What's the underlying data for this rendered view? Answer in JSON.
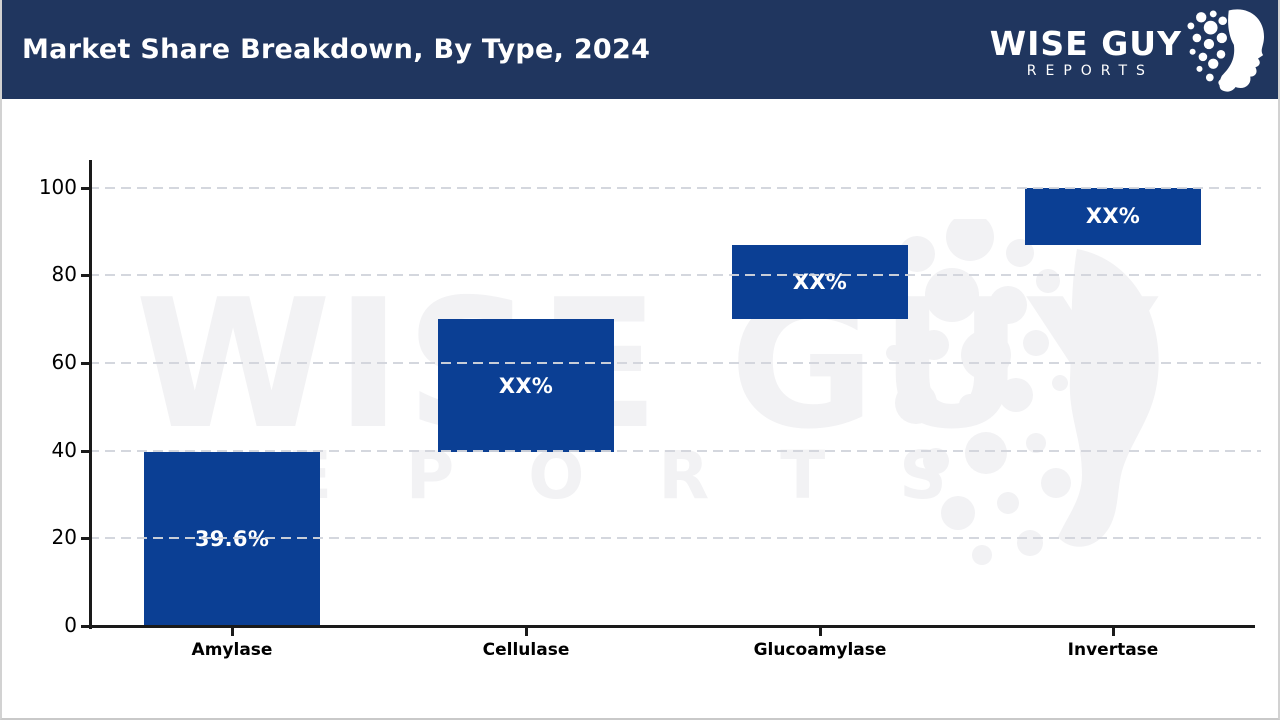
{
  "header": {
    "title": "Market Share Breakdown, By Type, 2024",
    "logo": {
      "line1": "WISE GUY",
      "line2": "REPORTS",
      "icon": "face-profile-dots-icon"
    }
  },
  "watermark": {
    "line1": "WISE GUY",
    "line2": "REPORTS",
    "icon": "face-profile-dots-watermark"
  },
  "chart_data": {
    "type": "bar",
    "subtype": "waterfall-stacked-market-share",
    "title": "Market Share Breakdown, By Type, 2024",
    "categories": [
      "Amylase",
      "Cellulase",
      "Glucoamylase",
      "Invertase"
    ],
    "segments": [
      {
        "category": "Amylase",
        "start": 0,
        "end": 39.6,
        "label": "39.6%"
      },
      {
        "category": "Cellulase",
        "start": 39.6,
        "end": 70,
        "label": "XX%"
      },
      {
        "category": "Glucoamylase",
        "start": 70,
        "end": 87,
        "label": "XX%"
      },
      {
        "category": "Invertase",
        "start": 87,
        "end": 100,
        "label": "XX%"
      }
    ],
    "xlabel": "",
    "ylabel": "",
    "yticks": [
      0,
      20,
      40,
      60,
      80,
      100
    ],
    "ylim": [
      0,
      105
    ],
    "grid": "horizontal-dashed",
    "legend": "none",
    "bar_color": "#0b3f94",
    "bar_label_color": "#ffffff"
  },
  "colors": {
    "header_bg": "#20365f",
    "bar": "#0b3f94",
    "grid_line": "#d4d6dc",
    "axis": "#1a1a1a",
    "watermark": "#f2f2f4"
  }
}
